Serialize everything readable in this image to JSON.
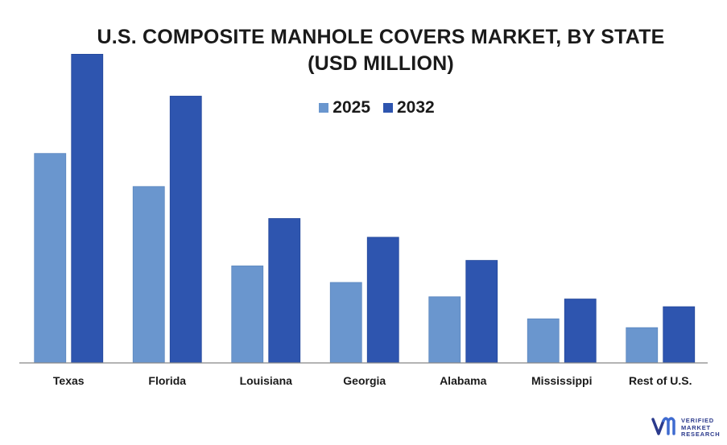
{
  "title_line1": "U.S. COMPOSITE MANHOLE COVERS MARKET, BY STATE",
  "title_line2": "(USD MILLION)",
  "colors": {
    "s2025": "#6A96CE",
    "s2032": "#2E55AF",
    "axis": "#888888"
  },
  "logo": {
    "line1": "VERIFIED",
    "line2": "MARKET",
    "line3": "RESEARCH"
  },
  "chart_data": {
    "type": "bar",
    "title": "U.S. COMPOSITE MANHOLE COVERS MARKET, BY STATE (USD MILLION)",
    "xlabel": "",
    "ylabel": "",
    "categories": [
      "Texas",
      "Florida",
      "Louisiana",
      "Georgia",
      "Alabama",
      "Mississippi",
      "Rest of U.S."
    ],
    "series": [
      {
        "name": "2025",
        "values": [
          190,
          160,
          88,
          73,
          60,
          40,
          32
        ]
      },
      {
        "name": "2032",
        "values": [
          280,
          242,
          131,
          114,
          93,
          58,
          51
        ]
      }
    ],
    "ylim": [
      0,
      300
    ],
    "grid": false,
    "legend": "top-center"
  }
}
